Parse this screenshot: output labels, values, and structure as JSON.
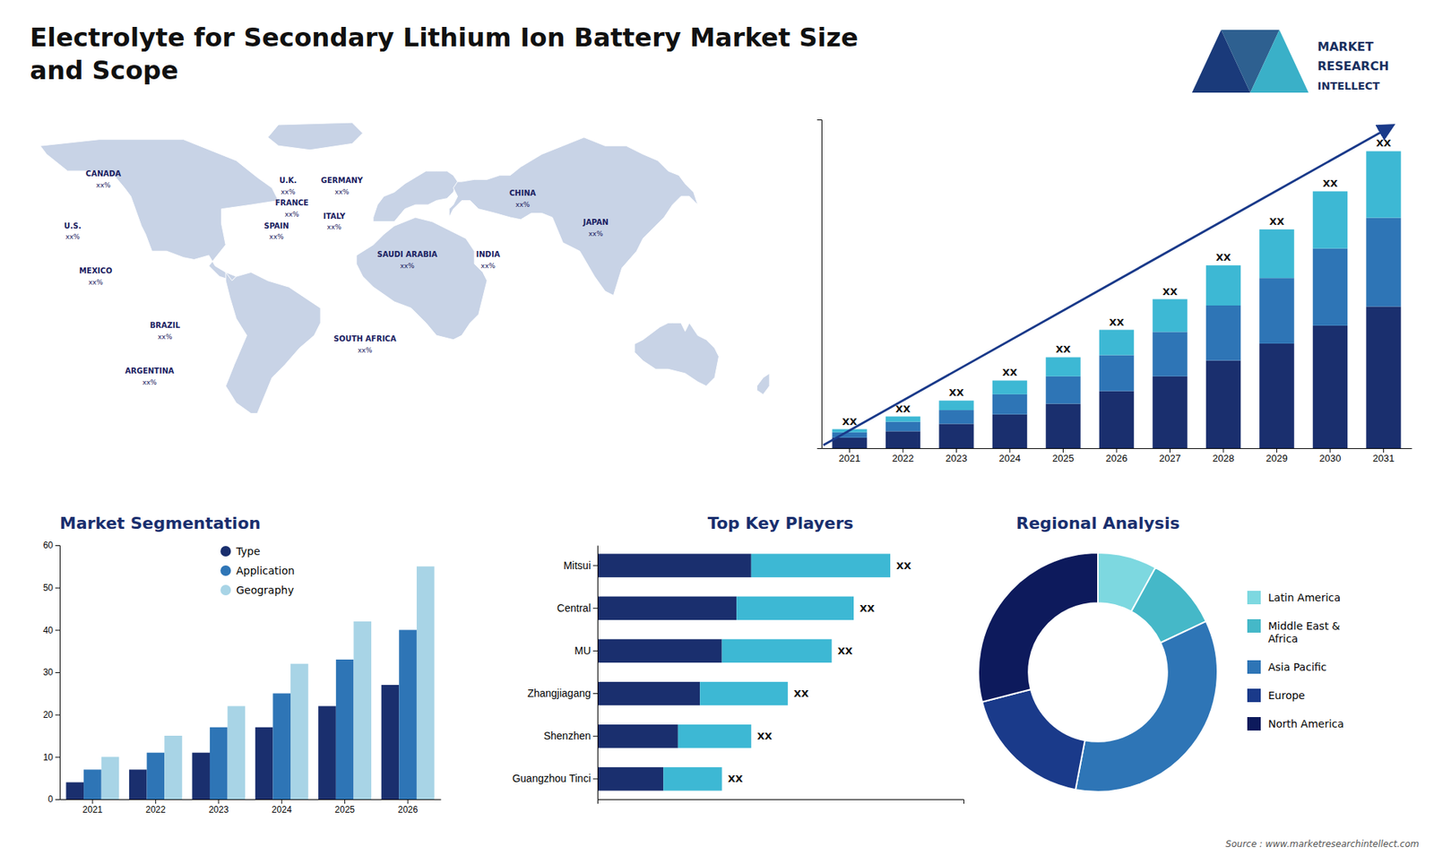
{
  "title": "Electrolyte for Secondary Lithium Ion Battery Market Size\nand Scope",
  "annotations": [
    "MARKET",
    "RESEARCH",
    "INTELLECT"
  ],
  "source": "Source : www.marketresearchintellect.com",
  "chart_data": [
    {
      "type": "map",
      "categories": [
        "CANADA",
        "U.S.",
        "MEXICO",
        "BRAZIL",
        "ARGENTINA",
        "U.K.",
        "FRANCE",
        "SPAIN",
        "GERMANY",
        "ITALY",
        "SAUDI ARABIA",
        "SOUTH AFRICA",
        "CHINA",
        "INDIA",
        "JAPAN"
      ],
      "annotations": [
        "xx%",
        "xx%",
        "xx%",
        "xx%",
        "xx%",
        "xx%",
        "xx%",
        "xx%",
        "xx%",
        "xx%",
        "xx%",
        "xx%",
        "xx%",
        "xx%",
        "xx%"
      ]
    },
    {
      "type": "bar",
      "stacked": true,
      "categories": [
        "2021",
        "2022",
        "2023",
        "2024",
        "2025",
        "2026",
        "2027",
        "2028",
        "2029",
        "2030",
        "2031"
      ],
      "series": [
        {
          "color": "#1a2f6e",
          "values": [
            1.0,
            1.6,
            2.3,
            3.2,
            4.2,
            5.4,
            6.8,
            8.3,
            9.9,
            11.6,
            13.4
          ]
        },
        {
          "color": "#2e75b6",
          "values": [
            0.5,
            0.9,
            1.3,
            1.9,
            2.6,
            3.4,
            4.2,
            5.2,
            6.2,
            7.3,
            8.4
          ]
        },
        {
          "color": "#3db8d4",
          "values": [
            0.3,
            0.5,
            0.9,
            1.3,
            1.8,
            2.4,
            3.1,
            3.8,
            4.6,
            5.4,
            6.3
          ]
        }
      ],
      "ylim": [
        0,
        31.1
      ],
      "tick_labels": "x",
      "annotations": [
        "XX",
        "XX",
        "XX",
        "XX",
        "XX",
        "XX",
        "XX",
        "XX",
        "XX",
        "XX",
        "XX"
      ]
    },
    {
      "type": "bar",
      "title": "Market Segmentation",
      "categories": [
        "2021",
        "2022",
        "2023",
        "2024",
        "2025",
        "2026"
      ],
      "series": [
        {
          "name": "Type",
          "color": "#1a2f6e",
          "values": [
            4,
            7,
            11,
            17,
            22,
            27
          ]
        },
        {
          "name": "Application",
          "color": "#2e75b6",
          "values": [
            7,
            11,
            17,
            25,
            33,
            40
          ]
        },
        {
          "name": "Geography",
          "color": "#a8d4e6",
          "values": [
            10,
            15,
            22,
            32,
            42,
            55
          ]
        }
      ],
      "ylim": [
        0,
        60
      ],
      "yticks": [
        0,
        10,
        20,
        30,
        40,
        50,
        60
      ],
      "grid": false,
      "legend": "upper left"
    },
    {
      "type": "bar",
      "orientation": "horizontal",
      "stacked": true,
      "title": "Top Key Players",
      "categories": [
        "Mitsui",
        "Central",
        "MU",
        "Zhangjiagang",
        "Shenzhen",
        "Guangzhou Tinci"
      ],
      "series": [
        {
          "color": "#1a2f6e",
          "values": [
            42,
            38,
            34,
            28,
            22,
            18
          ]
        },
        {
          "color": "#3db8d4",
          "values": [
            38,
            32,
            30,
            24,
            20,
            16
          ]
        }
      ],
      "xlim": [
        0,
        100
      ],
      "tick_labels": "y",
      "annotations": [
        "XX",
        "XX",
        "XX",
        "XX",
        "XX",
        "XX"
      ]
    },
    {
      "type": "donut",
      "title": "Regional Analysis",
      "categories": [
        "Latin America",
        "Middle East &\nAfrica",
        "Asia Pacific",
        "Europe",
        "North America"
      ],
      "values": [
        8,
        10,
        35,
        18,
        29
      ],
      "colors": [
        "#7dd8e0",
        "#45b8c8",
        "#2e75b6",
        "#1a3a8a",
        "#0d1a5c"
      ],
      "legend": "right"
    }
  ]
}
